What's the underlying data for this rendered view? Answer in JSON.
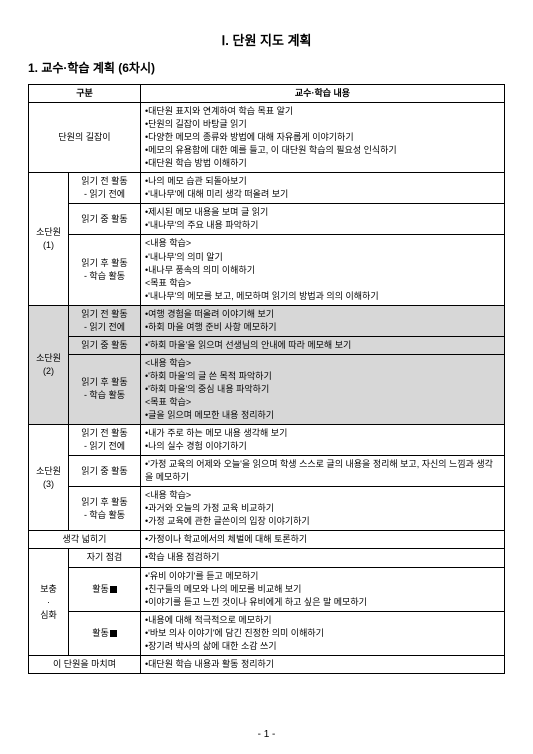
{
  "heading_main": "Ⅰ. 단원 지도 계획",
  "heading_sub": "1. 교수·학습 계획 (6차시)",
  "th1": "구분",
  "th2": "교수·학습 내용",
  "r_guide_label": "단원의 길잡이",
  "r_guide_txt": "•대단원 표지와 연계하여 학습 목표 알기\n•단원의 길잡이 바탕글 읽기\n•다양한 메모의 종류와 방법에 대해 자유롭게 이야기하기\n•메모의 유용함에 대한 예를 들고, 이 대단원 학습의 필요성 인식하기\n•대단원 학습 방법 이해하기",
  "sub1_label": "소단원\n(1)",
  "sub2_label": "소단원\n(2)",
  "sub3_label": "소단원\n(3)",
  "pre_label": "읽기 전 활동\n- 읽기 전에",
  "mid_label": "읽기 중 활동",
  "post_label": "읽기 후 활동\n- 학습 활동",
  "s1_pre": "•나의 메모 습관 되돌아보기\n•'내나무'에 대해 미리 생각 떠올려 보기",
  "s1_mid": "•제시된 메모 내용을 보며 글 읽기\n•'내나무'의 주요 내용 파악하기",
  "s1_post": "<내용 학습>\n•'내나무'의 의미 알기\n•내나무 풍속의 의미 이해하기\n<목표 학습>\n•'내나무'의 메모를 보고, 메모하며 읽기의 방법과 의의 이해하기",
  "s2_pre": "•여행 경험을 떠올려 이야기해 보기\n•하회 마을 여행 준비 사항 메모하기",
  "s2_mid": "•'하회 마을'을 읽으며 선생님의 안내에 따라 메모해 보기",
  "s2_post": "<내용 학습>\n•'하회 마을'의 글 쓴 목적 파악하기\n•'하회 마을'의 중심 내용 파악하기\n<목표 학습>\n•글을 읽으며 메모한 내용 정리하기",
  "s3_pre": "•내가 주로 하는 메모 내용 생각해 보기\n•나의 실수 경험 이야기하기",
  "s3_mid": "•'가정 교육의 어제와 오늘'을 읽으며 학생 스스로 글의 내용을 정리해 보고, 자신의 느낌과 생각을 메모하기",
  "s3_post": "<내용 학습>\n•과거와 오늘의 가정 교육 비교하기\n•가정 교육에 관한 글쓴이의 입장 이야기하기",
  "think_label": "생각 넓히기",
  "think_txt": "•가정이나 학교에서의 체벌에 대해 토론하기",
  "supp_label": "보충\n·\n심화",
  "self_label": "자기 점검",
  "self_txt": "•학습 내용 점검하기",
  "act1_label": "활동■",
  "act1_txt": "•'유비 이야기'를 듣고 메모하기\n•친구들의 메모와 나의 메모를 비교해 보기\n•이야기를 듣고 느낀 것이나 유비에게 하고 싶은 말 메모하기",
  "act2_label": "활동■",
  "act2_txt": "•내용에 대해 적극적으로 메모하기\n•'바보 의사 이야기'에 담긴 진정한 의미 이해하기\n•장기려 박사의 삶에 대한 소감 쓰기",
  "end_label": "이 단원을 마치며",
  "end_txt": "•대단원 학습 내용과 활동 정리하기",
  "page_no": "- 1 -"
}
